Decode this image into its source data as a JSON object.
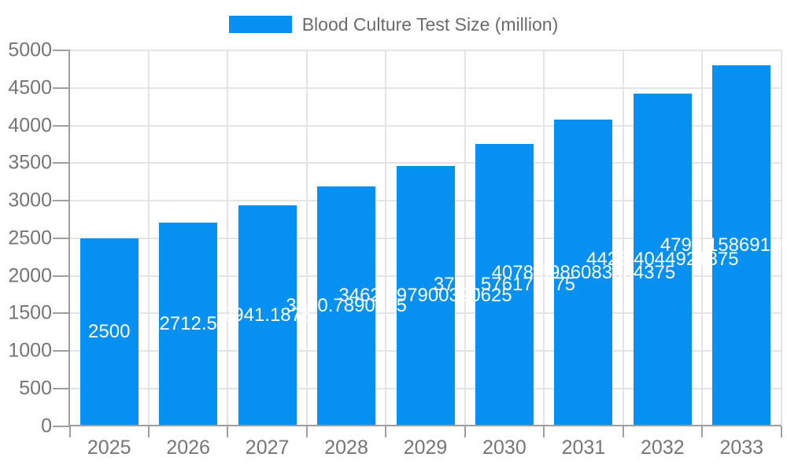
{
  "legend": {
    "label": "Blood Culture Test Size (million)"
  },
  "chart_data": {
    "type": "bar",
    "title": "",
    "legend_position": "top",
    "grid": true,
    "categories": [
      "2025",
      "2026",
      "2027",
      "2028",
      "2029",
      "2030",
      "2031",
      "2032",
      "2033"
    ],
    "series": [
      {
        "name": "Blood Culture Test Size (million)",
        "values": [
          2500,
          2712.5,
          2941.1875,
          3190.7890625,
          3462.597900390625,
          3759.576171875,
          4078.5986083984376,
          4428.4044921875,
          4799.15869140625
        ],
        "value_labels": [
          "2500",
          "2712.5",
          "2941.1875",
          "3190.7890625",
          "3462.597900390625",
          "3759.576171875",
          "4078.5986083984375",
          "4428.4044921875",
          "4799.15869140625"
        ]
      }
    ],
    "ylim": [
      0,
      5000
    ],
    "ytick_step": 500,
    "ytick_labels": [
      "0",
      "500",
      "1000",
      "1500",
      "2000",
      "2500",
      "3000",
      "3500",
      "4000",
      "4500",
      "5000"
    ],
    "colors": {
      "bar": "#0590f2",
      "grid": "#e4e4e4",
      "axis": "#9e9e9e",
      "tick_label": "#757575",
      "legend_text": "#6b6b6b",
      "value_label": "#ffffff",
      "background": "#ffffff"
    }
  }
}
